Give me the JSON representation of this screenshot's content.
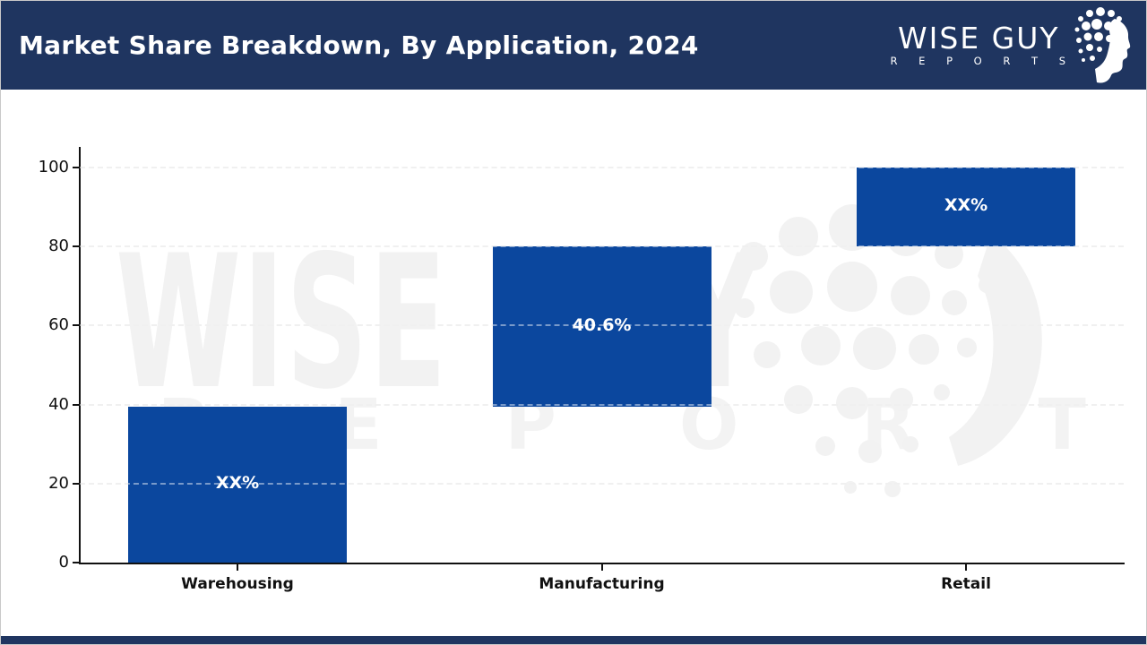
{
  "header": {
    "title": "Market Share Breakdown, By Application, 2024",
    "logo": {
      "line1": "WISE GUY",
      "line2": "R E P O R T S"
    }
  },
  "watermark": {
    "line1": "WISE GUY",
    "line2": "R E P O R T S"
  },
  "colors": {
    "header_bg": "#1f3560",
    "footer_bg": "#1f3560",
    "bar": "#0b479e",
    "bar_label": "#ffffff",
    "grid": "#e4e4e4",
    "axis": "#111111",
    "watermark": "#f2f2f2"
  },
  "chart_data": {
    "type": "bar",
    "subtype": "stacked-percentage-waterfall",
    "title": "Market Share Breakdown, By Application, 2024",
    "categories": [
      "Warehousing",
      "Manufacturing",
      "Retail"
    ],
    "series": [
      {
        "name": "Market Share",
        "segments": [
          {
            "category": "Warehousing",
            "from": 0,
            "to": 39.4,
            "label": "XX%"
          },
          {
            "category": "Manufacturing",
            "from": 39.4,
            "to": 80.0,
            "label": "40.6%"
          },
          {
            "category": "Retail",
            "from": 80.0,
            "to": 100.0,
            "label": "XX%"
          }
        ]
      }
    ],
    "xlabel": "",
    "ylabel": "",
    "ylim": [
      0,
      100
    ],
    "yticks": [
      0,
      20,
      40,
      60,
      80,
      100
    ],
    "grid": "horizontal-dashed",
    "legend": "none"
  }
}
